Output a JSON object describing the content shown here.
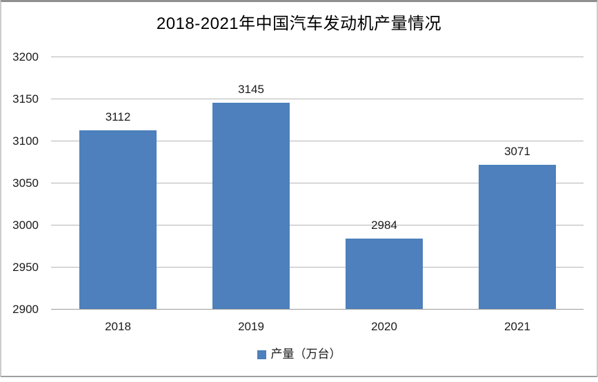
{
  "chart_data": {
    "type": "bar",
    "title": "2018-2021年中国汽车发动机产量情况",
    "categories": [
      "2018",
      "2019",
      "2020",
      "2021"
    ],
    "series": [
      {
        "name": "产量（万台）",
        "values": [
          3112,
          3145,
          2984,
          3071
        ]
      }
    ],
    "data_labels_shown": true,
    "xlabel": "",
    "ylabel": "",
    "ylim": [
      2900,
      3200
    ],
    "ytick_step": 50,
    "ytick_labels": [
      "2900",
      "2950",
      "3000",
      "3050",
      "3100",
      "3150",
      "3200"
    ],
    "grid": true,
    "legend_position": "bottom",
    "legend_entries": [
      "产量（万台）"
    ]
  },
  "colors": {
    "bar_fill": "#4d80bc",
    "gridline": "#b5b5b5",
    "axis_line": "#9a9a9a",
    "text": "#1a1a1a",
    "frame_top": "#8f8f8f",
    "frame_bottom": "#9f9f9f",
    "frame_sides": "#cccccc",
    "background": "#ffffff"
  }
}
